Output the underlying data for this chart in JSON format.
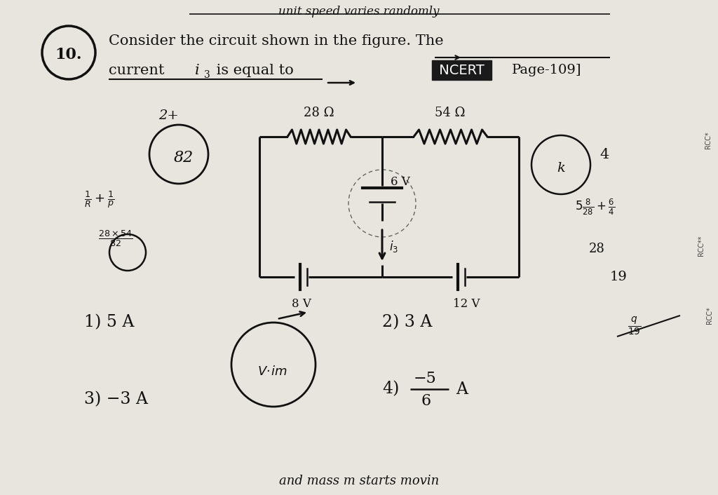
{
  "bg_color": "#e8e4de",
  "text_color": "#111111",
  "circuit_color": "#111111",
  "ncert_bg": "#1a1a1a",
  "ncert_text": "#ffffff",
  "resistor1_label": "28 Ω",
  "resistor2_label": "54 Ω",
  "battery_center_label": "6 V",
  "battery_left_label": "8 V",
  "battery_right_label": "12 V",
  "option1": "1) 5 A",
  "option2": "2) 3 A",
  "option3": "3) −3 A",
  "option4_num": "−5",
  "option4_den": "6",
  "option4_unit": "A",
  "fig_w": 10.24,
  "fig_h": 7.06,
  "xlim": [
    0,
    1024
  ],
  "ylim": [
    0,
    706
  ]
}
